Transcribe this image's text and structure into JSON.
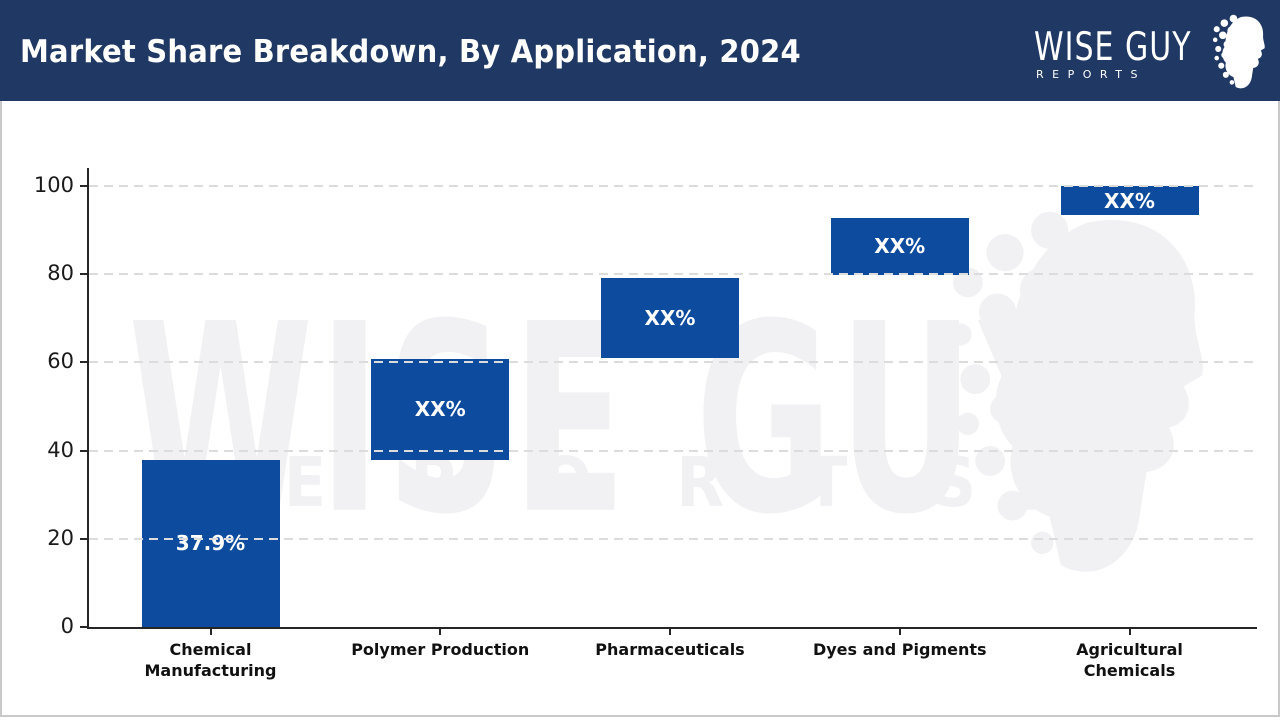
{
  "header": {
    "title": "Market Share Breakdown, By Application, 2024",
    "logo": {
      "line1": "WISE GUY",
      "line2": "REPORTS"
    }
  },
  "watermark": {
    "line1": "WISE GUY",
    "line2": "REPORTS"
  },
  "colors": {
    "header-bg": "#1f3864",
    "bar": "#0d4b9e",
    "axis": "#262626",
    "grid": "#dcdcdc",
    "tick-label": "#1a1a1a",
    "bar-label": "#ffffff",
    "watermark": "#f1f1f3",
    "border": "#c9c9c9"
  },
  "chart_data": {
    "type": "bar",
    "variant": "waterfall",
    "title": "Market Share Breakdown, By Application, 2024",
    "xlabel": "",
    "ylabel": "",
    "unit": "%",
    "ylim": [
      0,
      104
    ],
    "yticks": [
      0,
      20,
      40,
      60,
      80,
      100
    ],
    "grid": {
      "axis": "y",
      "style": "dashed",
      "on": true
    },
    "legend": null,
    "categories": [
      "Chemical Manufacturing",
      "Polymer Production",
      "Pharmaceuticals",
      "Dyes and Pigments",
      "Agricultural Chemicals"
    ],
    "category_label_lines": [
      [
        "Chemical",
        "Manufacturing"
      ],
      [
        "Polymer Production"
      ],
      [
        "Pharmaceuticals"
      ],
      [
        "Dyes and Pigments"
      ],
      [
        "Agricultural",
        "Chemicals"
      ]
    ],
    "series": [
      {
        "name": "Market share",
        "segments": [
          {
            "category": "Chemical Manufacturing",
            "start": 0,
            "end": 37.9,
            "label": "37.9%"
          },
          {
            "category": "Polymer Production",
            "start": 37.9,
            "end": 60.8,
            "label": "XX%"
          },
          {
            "category": "Pharmaceuticals",
            "start": 60.9,
            "end": 79.1,
            "label": "XX%"
          },
          {
            "category": "Dyes and Pigments",
            "start": 79.8,
            "end": 92.8,
            "label": "XX%"
          },
          {
            "category": "Agricultural Chemicals",
            "start": 93.4,
            "end": 100,
            "label": "XX%"
          }
        ]
      }
    ]
  }
}
